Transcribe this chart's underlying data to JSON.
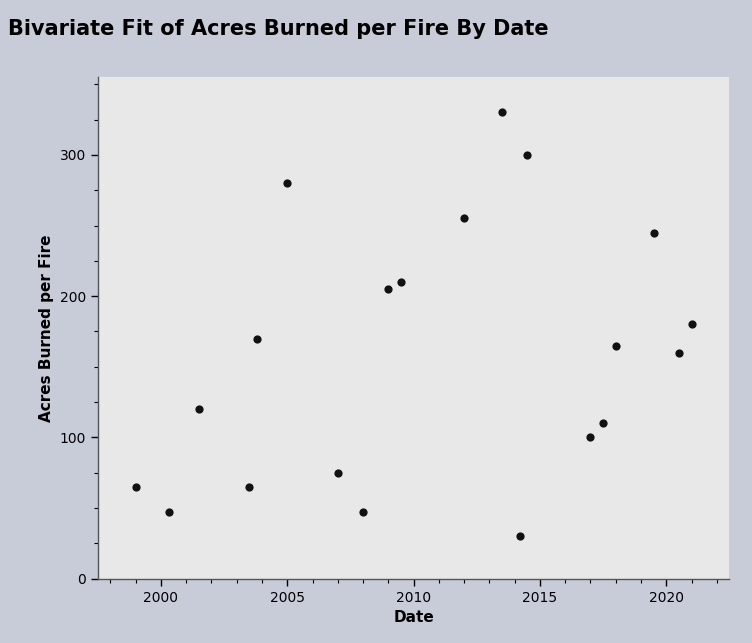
{
  "title": "Bivariate Fit of Acres Burned per Fire By Date",
  "xlabel": "Date",
  "ylabel": "Acres Burned per Fire",
  "xlim": [
    1997.5,
    2022.5
  ],
  "ylim": [
    0,
    355
  ],
  "yticks": [
    0,
    100,
    200,
    300
  ],
  "xticks": [
    2000,
    2005,
    2010,
    2015,
    2020
  ],
  "scatter_x": [
    1999,
    2000.3,
    2001.5,
    2003.5,
    2003.8,
    2005,
    2007,
    2008,
    2009,
    2009.5,
    2012,
    2013.5,
    2014.2,
    2014.5,
    2017,
    2017.5,
    2018,
    2019.5,
    2020.5,
    2021
  ],
  "scatter_y": [
    65,
    47,
    120,
    65,
    170,
    280,
    75,
    47,
    205,
    210,
    255,
    330,
    30,
    300,
    100,
    110,
    165,
    245,
    160,
    180
  ],
  "point_color": "#111111",
  "point_size": 35,
  "fig_bg_color": "#c8ccd8",
  "plot_bg_color": "#e8e8e8",
  "title_bg_color": "#9999bb",
  "title_fontsize": 15,
  "label_fontsize": 11,
  "tick_fontsize": 10
}
